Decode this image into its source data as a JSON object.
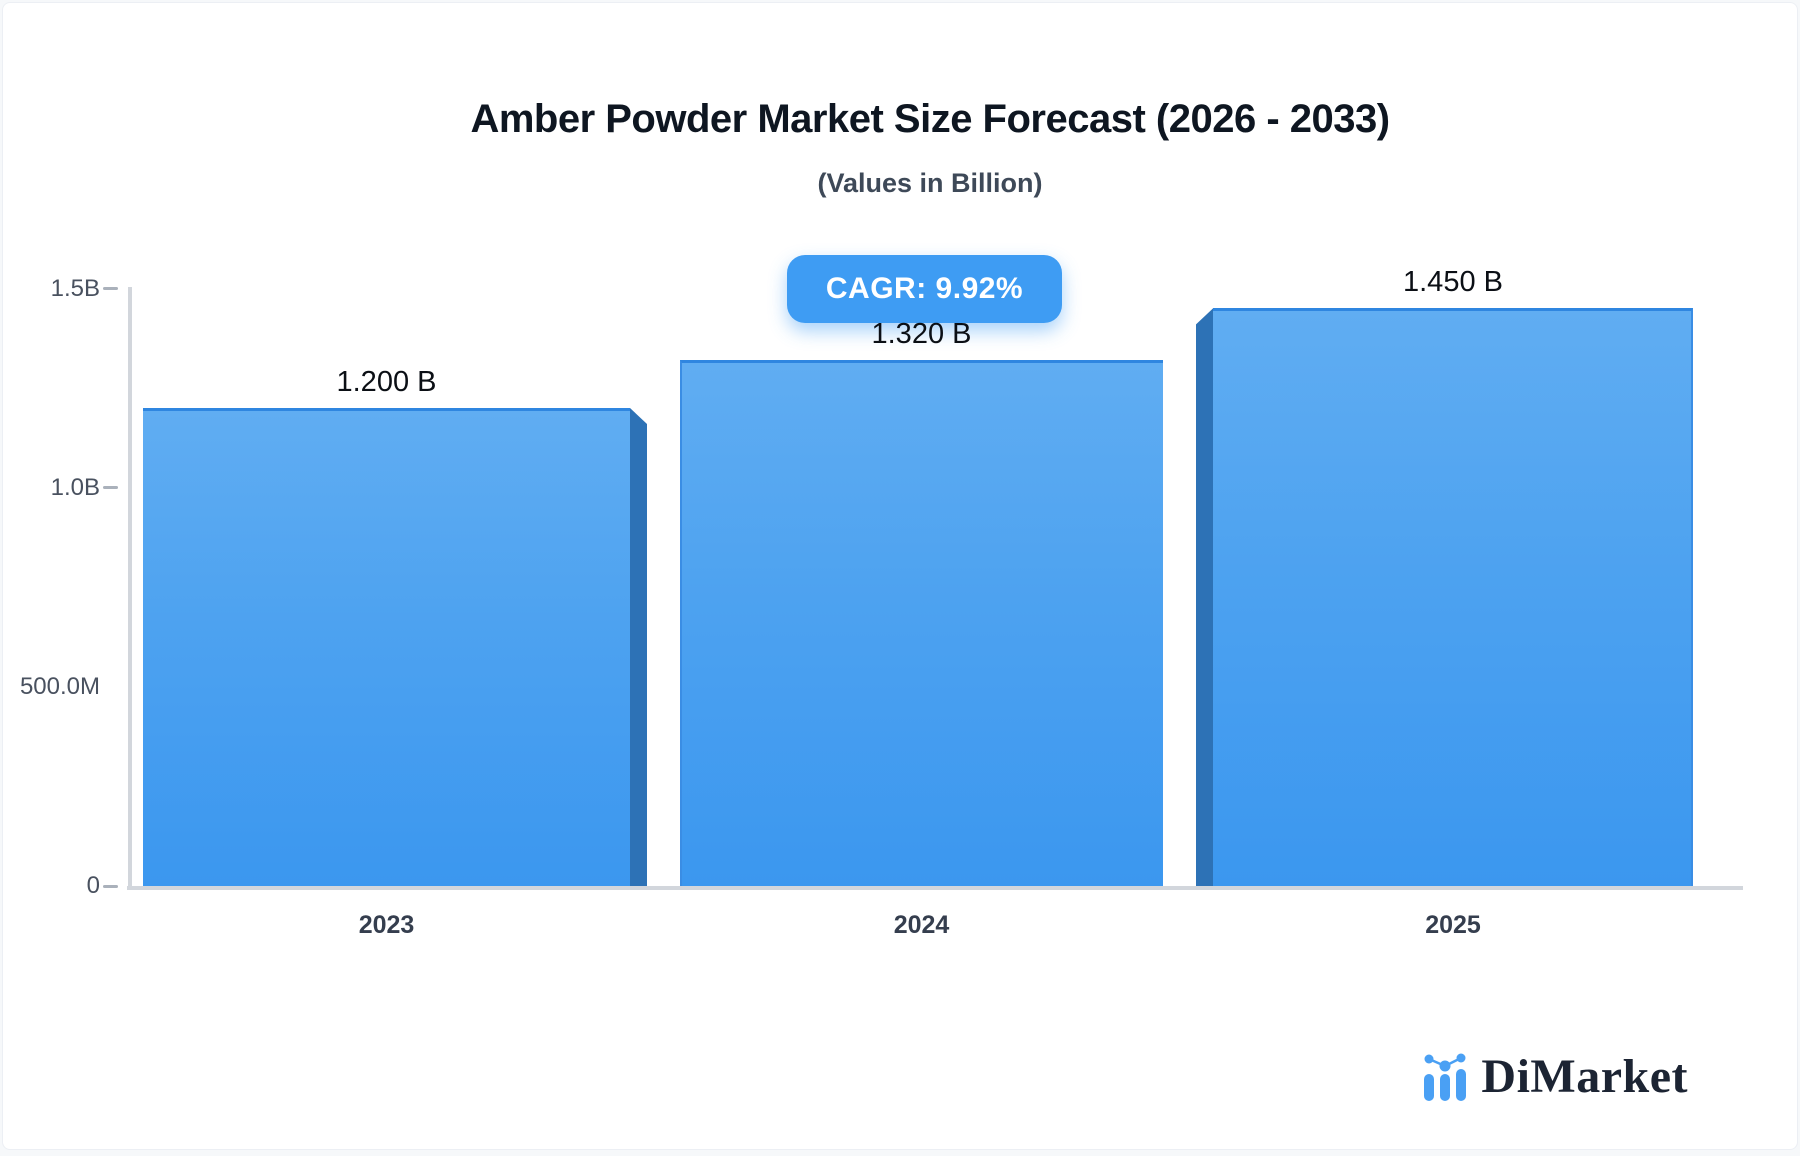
{
  "header": {
    "title": "Amber Powder Market Size Forecast (2026 - 2033)",
    "subtitle": "(Values in Billion)"
  },
  "badge": {
    "label": "CAGR: 9.92%",
    "color": "#3e9cf3",
    "text_color": "#ffffff"
  },
  "chart_data": {
    "type": "bar",
    "title": "Amber Powder Market Size Forecast (2026 - 2033)",
    "subtitle": "(Values in Billion)",
    "categories": [
      "2023",
      "2024",
      "2025"
    ],
    "values_billions": [
      1.2,
      1.32,
      1.45
    ],
    "bar_labels": [
      "1.200 B",
      "1.320 B",
      "1.450 B"
    ],
    "cagr_label": "CAGR: 9.92%",
    "y_ticks": [
      {
        "label": "1.5B",
        "value": 1.5,
        "dash": true
      },
      {
        "label": "1.0B",
        "value": 1.0,
        "dash": true
      },
      {
        "label": "500.0M",
        "value": 0.5,
        "dash": false
      },
      {
        "label": "0",
        "value": 0,
        "dash": true
      }
    ],
    "ylim_billions": [
      0,
      1.5
    ],
    "grid": false,
    "legend": false,
    "bar_color_top": "#60adf2",
    "bar_color_bottom": "#3b97ef",
    "bar_side_color": "#2d72b6",
    "bar_top_edge_color": "#2f86e0",
    "axis_color": "#d2d6dc"
  },
  "branding": {
    "name": "DiMarket",
    "icon": "bar-line-chart-icon",
    "text_color": "#1c2433",
    "icon_color": "#4aa0f4"
  }
}
